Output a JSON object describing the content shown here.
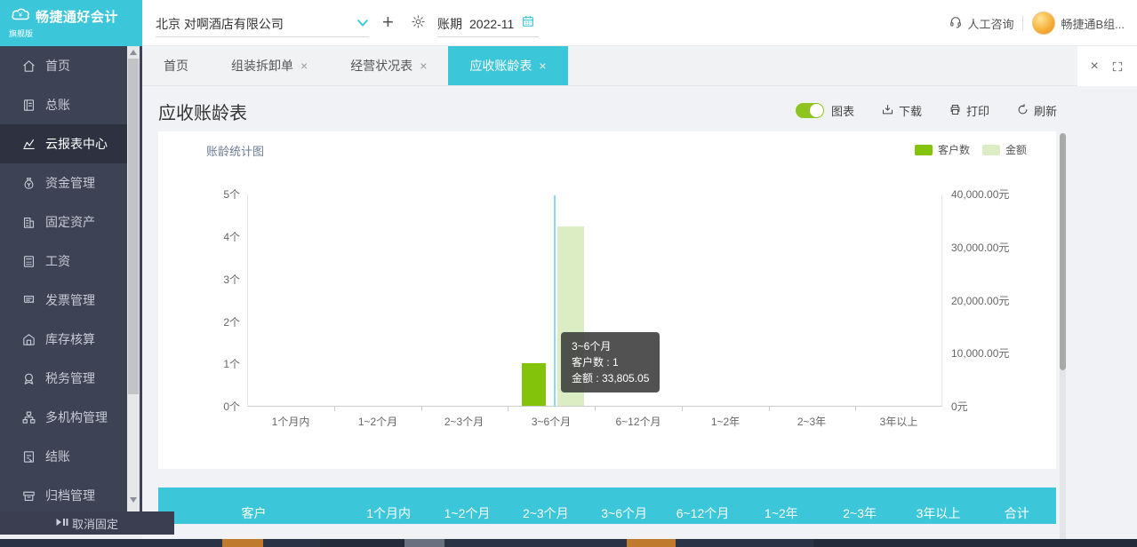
{
  "brand": {
    "name": "畅捷通好会计",
    "edition": "旗舰版"
  },
  "topbar": {
    "company": "北京 对啊酒店有限公司",
    "period_label": "账期",
    "period_value": "2022-11",
    "help_label": "人工咨询",
    "user_name": "畅捷通B组..."
  },
  "tabs": [
    {
      "label": "首页",
      "closable": false,
      "active": false
    },
    {
      "label": "组装拆卸单",
      "closable": true,
      "active": false
    },
    {
      "label": "经营状况表",
      "closable": true,
      "active": false
    },
    {
      "label": "应收账龄表",
      "closable": true,
      "active": true
    }
  ],
  "sidebar": {
    "items": [
      {
        "label": "首页"
      },
      {
        "label": "总账"
      },
      {
        "label": "云报表中心",
        "active": true
      },
      {
        "label": "资金管理"
      },
      {
        "label": "固定资产"
      },
      {
        "label": "工资"
      },
      {
        "label": "发票管理"
      },
      {
        "label": "库存核算"
      },
      {
        "label": "税务管理"
      },
      {
        "label": "多机构管理"
      },
      {
        "label": "结账"
      },
      {
        "label": "归档管理"
      }
    ],
    "unpin_label": "取消固定"
  },
  "page": {
    "title": "应收账龄表",
    "chart_toggle_label": "图表",
    "chart_toggle_on": true,
    "download_label": "下载",
    "print_label": "打印",
    "refresh_label": "刷新"
  },
  "chart_data": {
    "type": "bar",
    "title": "账龄统计图",
    "categories": [
      "1个月内",
      "1~2个月",
      "2~3个月",
      "3~6个月",
      "6~12个月",
      "1~2年",
      "2~3年",
      "3年以上"
    ],
    "series": [
      {
        "name": "客户数",
        "axis": "left",
        "color": "#84c30b",
        "values": [
          0,
          0,
          0,
          1,
          0,
          0,
          0,
          0
        ]
      },
      {
        "name": "金额",
        "axis": "right",
        "color": "#dcedc4",
        "values": [
          0,
          0,
          0,
          33805.05,
          0,
          0,
          0,
          0
        ]
      }
    ],
    "left_axis": {
      "ticks": [
        "0个",
        "1个",
        "2个",
        "3个",
        "4个",
        "5个"
      ],
      "max": 5,
      "min": 0
    },
    "right_axis": {
      "ticks": [
        "0元",
        "10,000.00元",
        "20,000.00元",
        "30,000.00元",
        "40,000.00元"
      ],
      "max": 40000,
      "min": 0
    },
    "hover_index": 3,
    "tooltip": {
      "title": "3~6个月",
      "lines": [
        "客户数 : 1",
        "金额 : 33,805.05"
      ]
    },
    "legend_position": "top-right",
    "grid": false
  },
  "table": {
    "headers": [
      "客户",
      "1个月内",
      "1~2个月",
      "2~3个月",
      "3~6个月",
      "6~12个月",
      "1~2年",
      "2~3年",
      "3年以上",
      "合计"
    ]
  },
  "ui": {
    "close": "×",
    "plus": "+"
  },
  "colors": {
    "brand_cyan": "#3bc6d9",
    "sidebar_bg": "#3d4254",
    "bar_green": "#84c30b",
    "bar_light_green": "#dcedc4",
    "toggle_green": "#8fc320",
    "taskbar_orange": "#bf7a2e"
  }
}
